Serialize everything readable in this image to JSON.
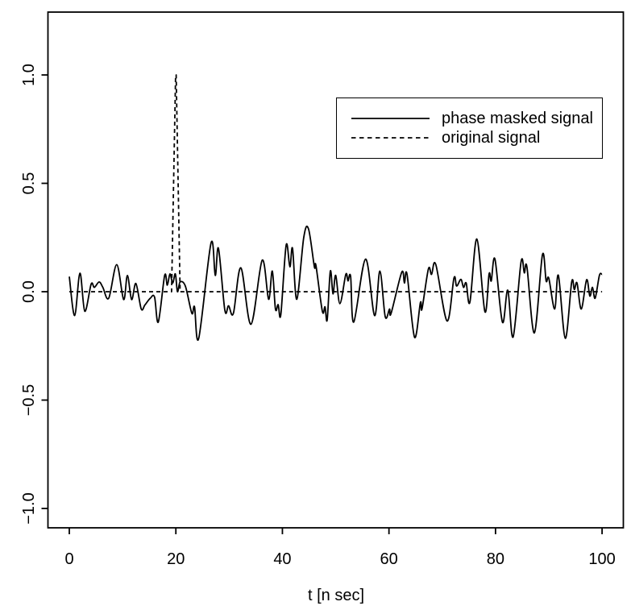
{
  "chart_data": {
    "type": "line",
    "title": "",
    "xlabel": "t [n sec]",
    "ylabel": "",
    "xlim": [
      0,
      100
    ],
    "ylim": [
      -1.0,
      1.0
    ],
    "x_ticks": [
      0,
      20,
      40,
      60,
      80,
      100
    ],
    "x_tick_labels": [
      "0",
      "20",
      "40",
      "60",
      "80",
      "100"
    ],
    "y_ticks": [
      1.0,
      0.5,
      0.0,
      -0.5,
      -1.0
    ],
    "y_tick_labels": [
      "1.0",
      "0.5",
      "0.0",
      "−0.5",
      "−1.0"
    ],
    "grid": false,
    "background_color": "#ffffff",
    "line_color": "#000000",
    "legend_position": "top-right",
    "series": [
      {
        "name": "phase masked signal",
        "line_style": "solid",
        "color": "#000000",
        "points": [
          [
            0.0,
            0.07
          ],
          [
            1.0,
            -0.11
          ],
          [
            2.0,
            0.085
          ],
          [
            2.9,
            -0.09
          ],
          [
            4.1,
            0.035
          ],
          [
            4.7,
            0.02
          ],
          [
            5.6,
            0.045
          ],
          [
            6.3,
            0.02
          ],
          [
            7.4,
            -0.03
          ],
          [
            8.9,
            0.125
          ],
          [
            10.2,
            -0.036
          ],
          [
            10.9,
            0.075
          ],
          [
            11.7,
            -0.036
          ],
          [
            12.5,
            0.038
          ],
          [
            13.5,
            -0.079
          ],
          [
            14.2,
            -0.061
          ],
          [
            15.2,
            -0.03
          ],
          [
            16.0,
            -0.025
          ],
          [
            16.7,
            -0.14
          ],
          [
            17.9,
            0.075
          ],
          [
            18.4,
            0.03
          ],
          [
            18.9,
            0.082
          ],
          [
            19.4,
            0.04
          ],
          [
            19.9,
            0.082
          ],
          [
            20.3,
            0.0
          ],
          [
            20.8,
            0.045
          ],
          [
            21.8,
            0.025
          ],
          [
            23.0,
            -0.1
          ],
          [
            23.5,
            -0.07
          ],
          [
            24.3,
            -0.215
          ],
          [
            26.6,
            0.225
          ],
          [
            27.4,
            0.075
          ],
          [
            28.0,
            0.2
          ],
          [
            29.2,
            -0.085
          ],
          [
            29.9,
            -0.065
          ],
          [
            30.8,
            -0.1
          ],
          [
            32.2,
            0.11
          ],
          [
            34.1,
            -0.15
          ],
          [
            36.2,
            0.145
          ],
          [
            37.4,
            -0.035
          ],
          [
            38.1,
            0.095
          ],
          [
            38.7,
            -0.08
          ],
          [
            39.2,
            -0.06
          ],
          [
            39.7,
            -0.105
          ],
          [
            40.7,
            0.215
          ],
          [
            41.4,
            0.115
          ],
          [
            41.9,
            0.2
          ],
          [
            42.7,
            -0.035
          ],
          [
            44.0,
            0.25
          ],
          [
            44.9,
            0.29
          ],
          [
            46.0,
            0.115
          ],
          [
            46.3,
            0.12
          ],
          [
            47.5,
            -0.09
          ],
          [
            48.0,
            -0.07
          ],
          [
            48.4,
            -0.13
          ],
          [
            49.0,
            0.095
          ],
          [
            49.5,
            -0.01
          ],
          [
            50.0,
            0.075
          ],
          [
            50.8,
            -0.055
          ],
          [
            51.9,
            0.08
          ],
          [
            52.3,
            0.05
          ],
          [
            52.8,
            0.07
          ],
          [
            53.4,
            -0.14
          ],
          [
            55.6,
            0.15
          ],
          [
            57.3,
            -0.11
          ],
          [
            58.3,
            0.095
          ],
          [
            59.3,
            -0.115
          ],
          [
            60.1,
            -0.08
          ],
          [
            60.4,
            -0.1
          ],
          [
            62.4,
            0.09
          ],
          [
            62.9,
            0.04
          ],
          [
            63.4,
            0.08
          ],
          [
            64.8,
            -0.21
          ],
          [
            65.9,
            -0.05
          ],
          [
            66.2,
            -0.08
          ],
          [
            67.4,
            0.105
          ],
          [
            68.0,
            0.08
          ],
          [
            68.8,
            0.125
          ],
          [
            70.9,
            -0.135
          ],
          [
            72.2,
            0.063
          ],
          [
            72.7,
            0.026
          ],
          [
            73.5,
            0.057
          ],
          [
            74.0,
            0.02
          ],
          [
            74.5,
            0.04
          ],
          [
            75.2,
            -0.048
          ],
          [
            76.5,
            0.243
          ],
          [
            78.0,
            -0.092
          ],
          [
            78.8,
            0.082
          ],
          [
            79.2,
            0.05
          ],
          [
            79.9,
            0.15
          ],
          [
            81.3,
            -0.141
          ],
          [
            82.3,
            0.007
          ],
          [
            83.3,
            -0.209
          ],
          [
            84.8,
            0.138
          ],
          [
            85.4,
            0.087
          ],
          [
            85.9,
            0.113
          ],
          [
            87.3,
            -0.19
          ],
          [
            88.8,
            0.17
          ],
          [
            89.5,
            0.05
          ],
          [
            90.0,
            0.062
          ],
          [
            91.1,
            -0.08
          ],
          [
            91.8,
            0.075
          ],
          [
            93.1,
            -0.215
          ],
          [
            94.3,
            0.045
          ],
          [
            94.8,
            0.01
          ],
          [
            95.3,
            0.04
          ],
          [
            96.1,
            -0.08
          ],
          [
            97.1,
            0.055
          ],
          [
            97.7,
            -0.02
          ],
          [
            98.2,
            0.02
          ],
          [
            98.7,
            -0.03
          ],
          [
            99.5,
            0.075
          ],
          [
            100.0,
            0.08
          ]
        ]
      },
      {
        "name": "original signal",
        "line_style": "dashed",
        "color": "#000000",
        "points": [
          [
            0.0,
            0.0
          ],
          [
            19.2,
            0.0
          ],
          [
            19.95,
            1.0
          ],
          [
            20.05,
            1.0
          ],
          [
            20.8,
            0.0
          ],
          [
            100.0,
            0.0
          ]
        ]
      }
    ]
  }
}
